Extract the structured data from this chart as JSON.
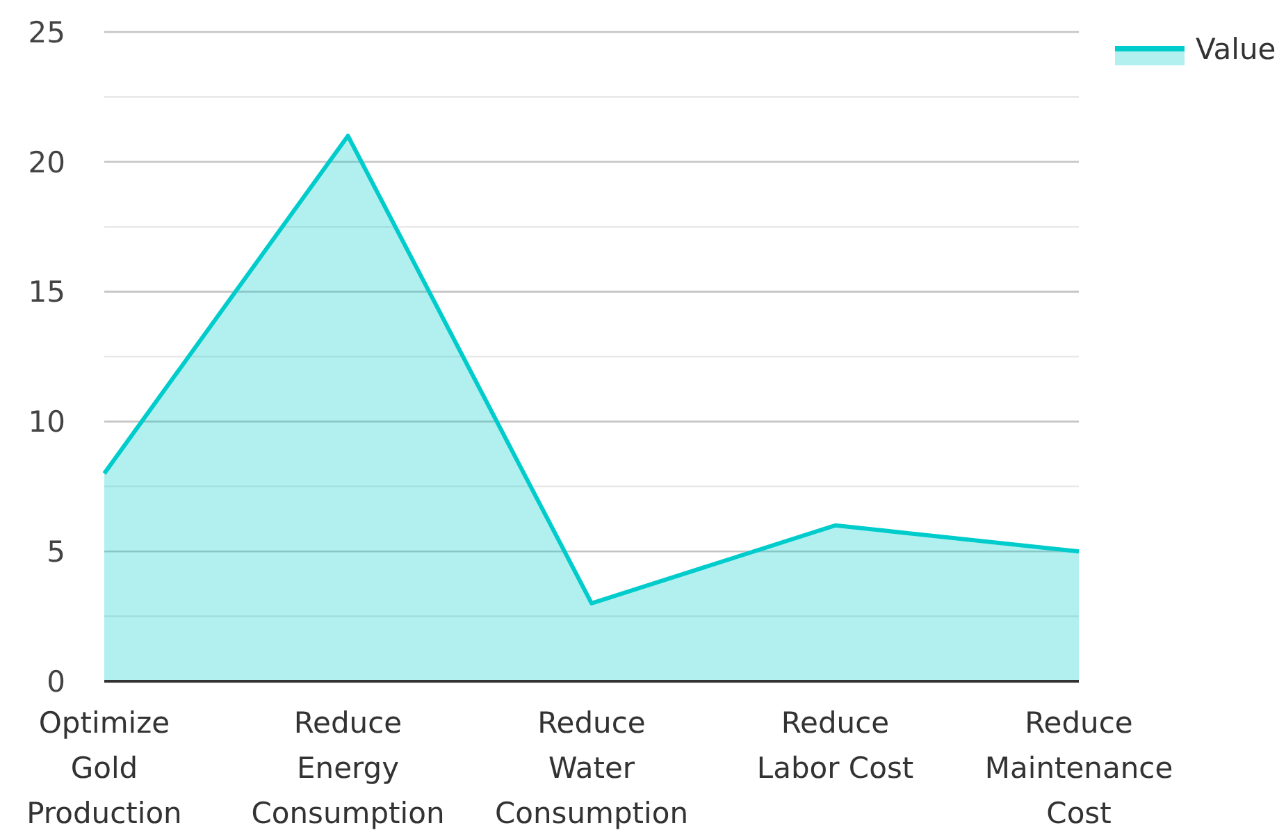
{
  "chart_data": {
    "type": "area",
    "categories": [
      "Optimize Gold Production",
      "Reduce Energy Consumption",
      "Reduce Water Consumption",
      "Reduce Labor Cost",
      "Reduce Maintenance Cost"
    ],
    "series": [
      {
        "name": "Value",
        "color": "#00cccc",
        "values": [
          8,
          21,
          3,
          6,
          5
        ]
      }
    ],
    "ylim": [
      0,
      25
    ],
    "yticks": [
      0,
      {
        "value": 2.5,
        "label": null
      },
      5,
      {
        "value": 7.5,
        "label": null
      },
      10,
      {
        "value": 12.5,
        "label": null
      },
      15,
      {
        "value": 17.5,
        "label": null
      },
      20,
      {
        "value": 22.5,
        "label": null
      },
      25
    ],
    "grid": "y",
    "legend": "top right"
  }
}
